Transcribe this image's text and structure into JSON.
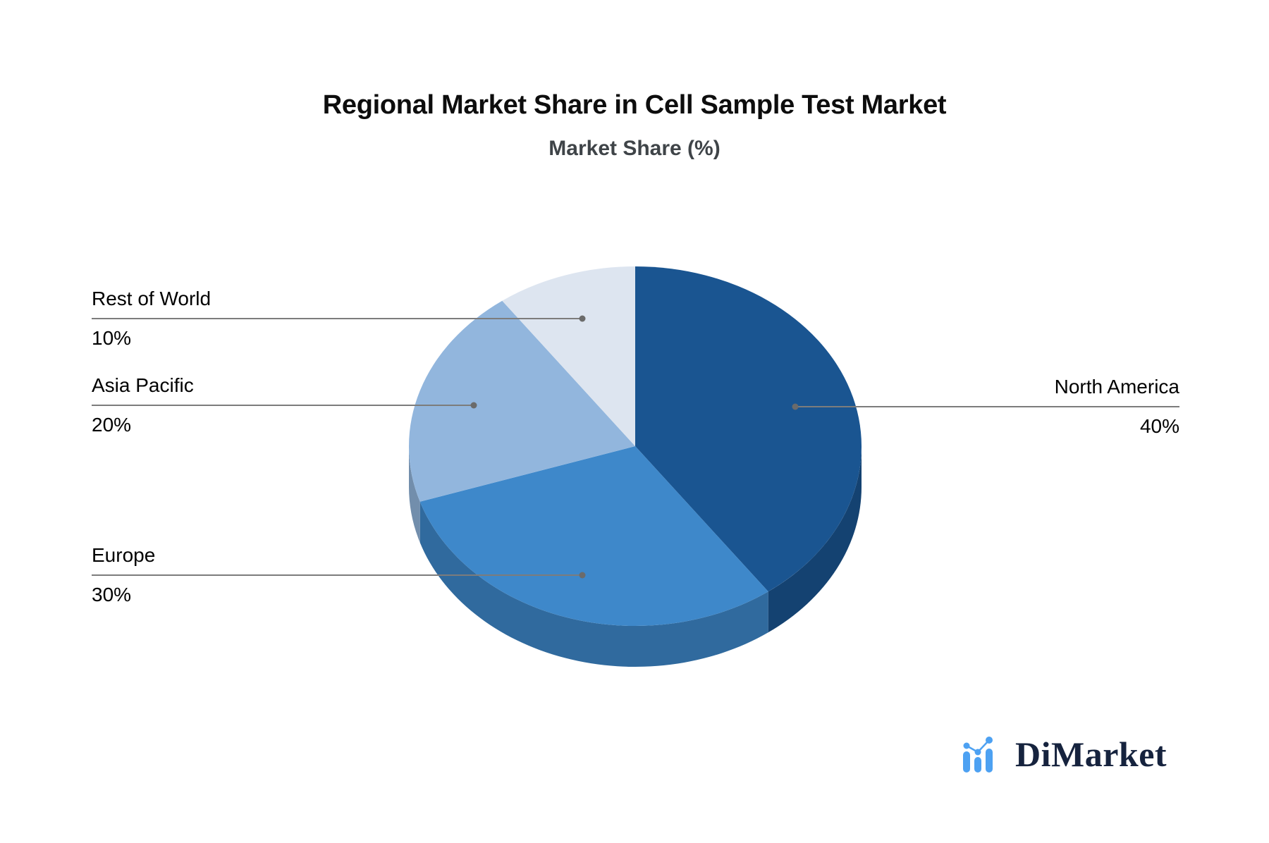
{
  "title": "Regional Market Share in Cell Sample Test Market",
  "subtitle": "Market Share (%)",
  "brand": {
    "name": "DiMarket"
  },
  "chart_data": {
    "type": "pie",
    "title": "Regional Market Share in Cell Sample Test Market",
    "subtitle": "Market Share (%)",
    "unit": "%",
    "effect": "3d",
    "start_angle_deg": 90,
    "direction": "clockwise",
    "legend_position": "callout-lines",
    "labels": [
      "North America",
      "Europe",
      "Asia Pacific",
      "Rest of World"
    ],
    "values": [
      40,
      30,
      20,
      10
    ],
    "value_labels": [
      "40%",
      "30%",
      "20%",
      "10%"
    ],
    "colors": [
      "#1a5591",
      "#3e88ca",
      "#92b6dd",
      "#dde5f0"
    ]
  }
}
